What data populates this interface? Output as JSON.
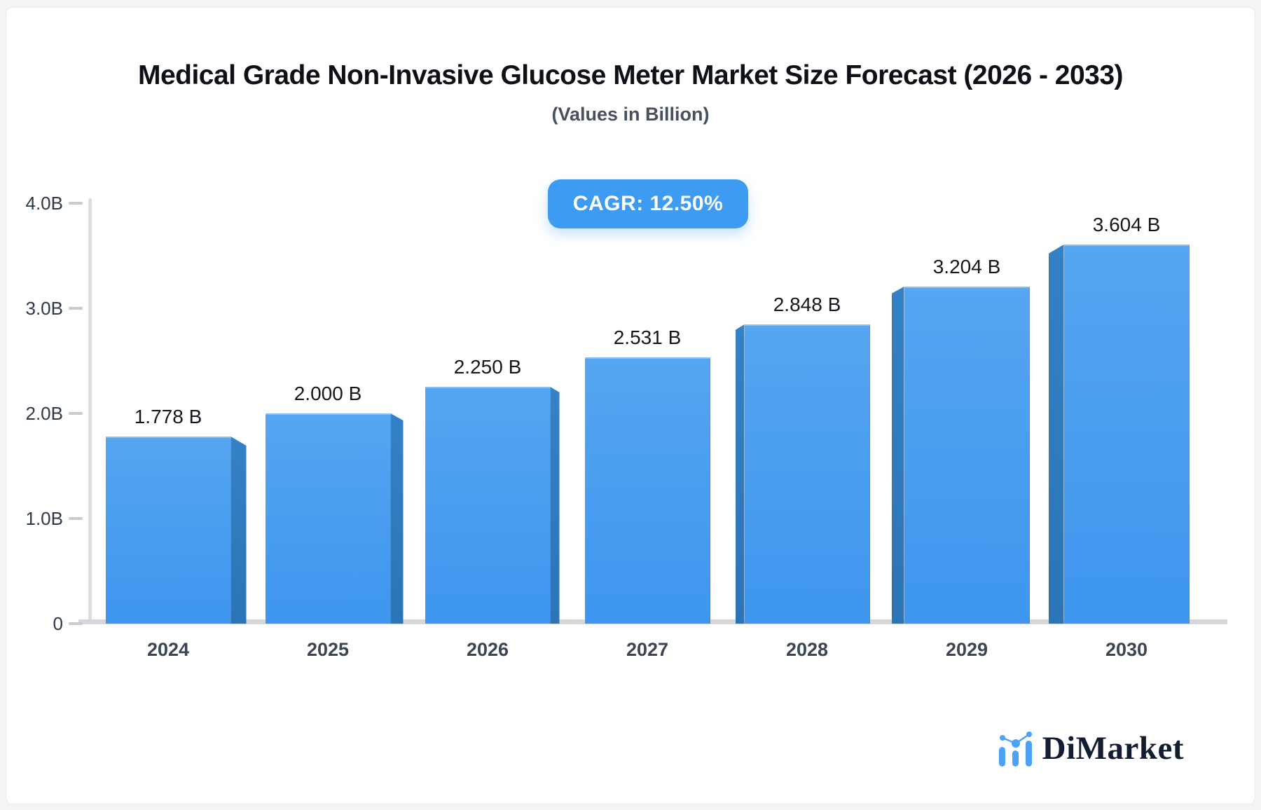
{
  "header": {
    "title": "Medical Grade Non-Invasive Glucose Meter Market Size Forecast (2026 - 2033)",
    "subtitle": "(Values in Billion)"
  },
  "badge": {
    "label": "CAGR: 12.50%",
    "background": "#3e9bf2",
    "text_color": "#ffffff"
  },
  "chart_data": {
    "type": "bar",
    "title": "Medical Grade Non-Invasive Glucose Meter Market Size Forecast (2026 - 2033)",
    "subtitle": "(Values in Billion)",
    "categories": [
      "2024",
      "2025",
      "2026",
      "2027",
      "2028",
      "2029",
      "2030"
    ],
    "values": [
      1.778,
      2.0,
      2.25,
      2.531,
      2.848,
      3.204,
      3.604
    ],
    "value_labels": [
      "1.778 B",
      "2.000 B",
      "2.250 B",
      "2.531 B",
      "2.848 B",
      "3.204 B",
      "3.604 B"
    ],
    "xlabel": "",
    "ylabel": "",
    "ylim": [
      0,
      4.0
    ],
    "yticks": [
      {
        "value": 0,
        "label": "0"
      },
      {
        "value": 1.0,
        "label": "1.0B"
      },
      {
        "value": 2.0,
        "label": "2.0B"
      },
      {
        "value": 3.0,
        "label": "3.0B"
      },
      {
        "value": 4.0,
        "label": "4.0B"
      }
    ],
    "grid": false,
    "legend": "none",
    "style": "3d-extruded-perspective",
    "bar_front_color": "#4a9eee",
    "bar_side_color": "#2e78ba",
    "axis_color": "#d5d7da",
    "label_color": "#14171c"
  },
  "footer_logo": {
    "text": "DiMarket",
    "icon": "bar-line-chart-icon",
    "icon_color": "#4ba2f6",
    "text_color": "#131d31"
  }
}
